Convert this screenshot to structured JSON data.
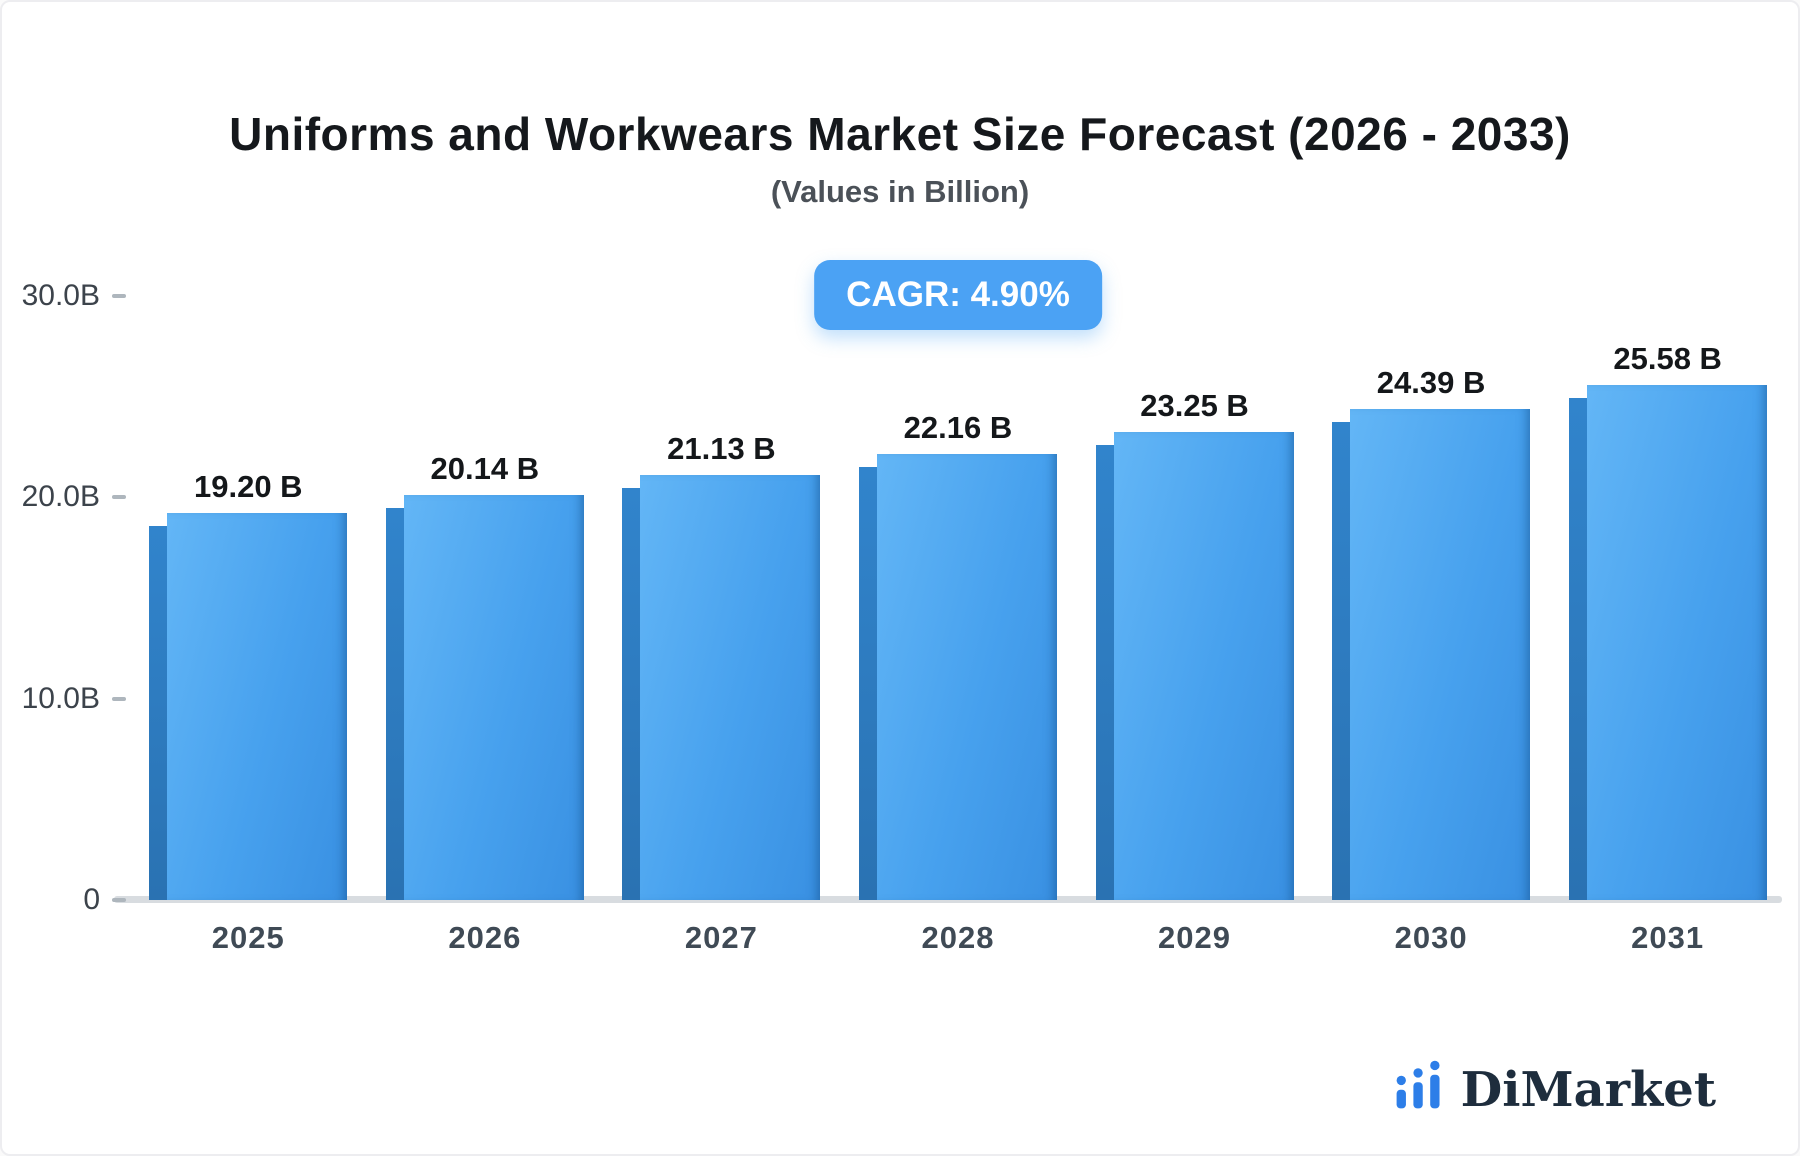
{
  "header": {
    "title": "Uniforms and Workwears Market Size Forecast (2026 - 2033)",
    "subtitle": "(Values in Billion)"
  },
  "badge": {
    "label": "CAGR: 4.90%",
    "background_color": "#4BA2F4",
    "text_color": "#ffffff"
  },
  "chart_data": {
    "type": "bar",
    "title": "Uniforms and Workwears Market Size Forecast (2026 - 2033)",
    "subtitle": "(Values in Billion)",
    "categories": [
      "2025",
      "2026",
      "2027",
      "2028",
      "2029",
      "2030",
      "2031"
    ],
    "values": [
      19.2,
      20.14,
      21.13,
      22.16,
      23.25,
      24.39,
      25.58
    ],
    "value_labels": [
      "19.20 B",
      "20.14 B",
      "21.13 B",
      "22.16 B",
      "23.25 B",
      "24.39 B",
      "25.58 B"
    ],
    "xlabel": "",
    "ylabel": "",
    "ylim": [
      0,
      30
    ],
    "yticks": [
      {
        "value": 0,
        "label": "0"
      },
      {
        "value": 10,
        "label": "10.0B"
      },
      {
        "value": 20,
        "label": "20.0B"
      },
      {
        "value": 30,
        "label": "30.0B"
      }
    ],
    "grid": false,
    "legend": null,
    "bar_color": "#47A1EE",
    "bar_side_color": "#2E7DC0"
  },
  "logo": {
    "text": "DiMarket",
    "icon": "dimarket-bars-icon",
    "icon_color": "#2D7EE8",
    "text_color": "#1e2d3d"
  }
}
